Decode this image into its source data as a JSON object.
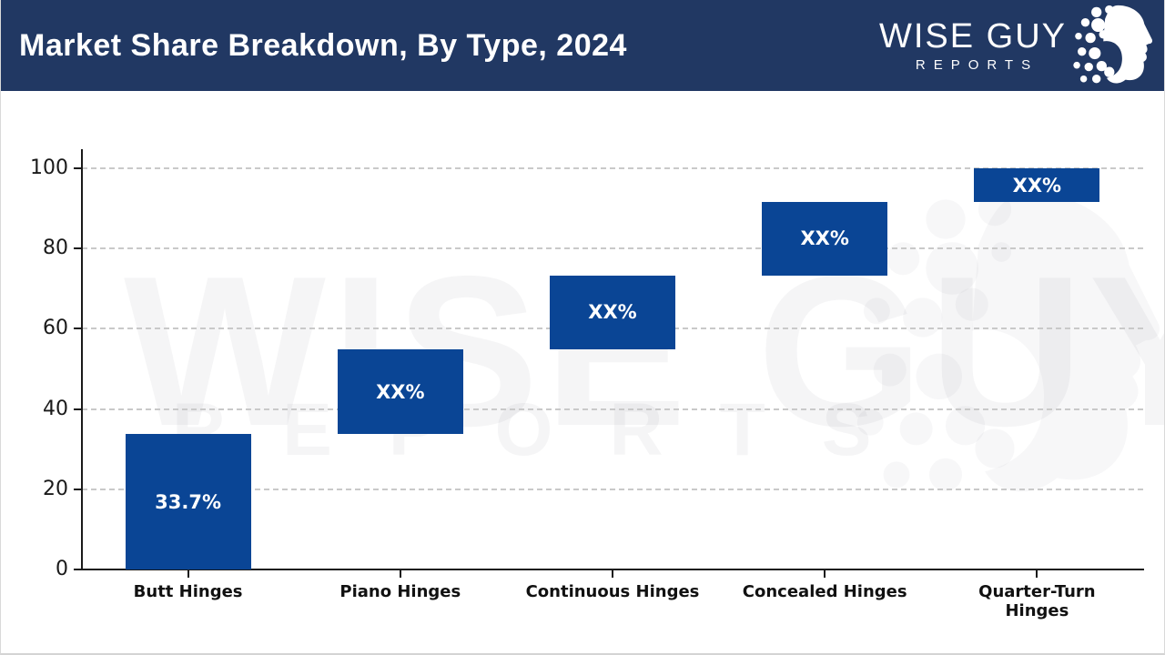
{
  "header": {
    "title": "Market Share Breakdown, By Type, 2024",
    "bg_color": "#213863",
    "logo": {
      "line1": "WISE GUY",
      "line2": "REPORTS"
    }
  },
  "watermark": {
    "line1": "WISE GUY",
    "line2": "REPORTS"
  },
  "chart_data": {
    "type": "bar",
    "subtype": "waterfall-stepped",
    "title": "Market Share Breakdown, By Type, 2024",
    "categories": [
      "Butt Hinges",
      "Piano Hinges",
      "Continuous Hinges",
      "Concealed Hinges",
      "Quarter-Turn\nHinges"
    ],
    "series": [
      {
        "name": "Market Share %",
        "bases": [
          0,
          33.7,
          54.9,
          73.3,
          91.6
        ],
        "values": [
          33.7,
          21.2,
          18.4,
          18.3,
          8.4
        ],
        "labels": [
          "33.7%",
          "XX%",
          "XX%",
          "XX%",
          "XX%"
        ]
      }
    ],
    "bar_color": "#0a4595",
    "bar_label_color": "#ffffff",
    "xlabel": "",
    "ylabel": "",
    "yticks": [
      0,
      20,
      40,
      60,
      80,
      100
    ],
    "ylim": [
      0,
      104.8
    ],
    "grid": "horizontal-dashed",
    "legend": "none"
  }
}
